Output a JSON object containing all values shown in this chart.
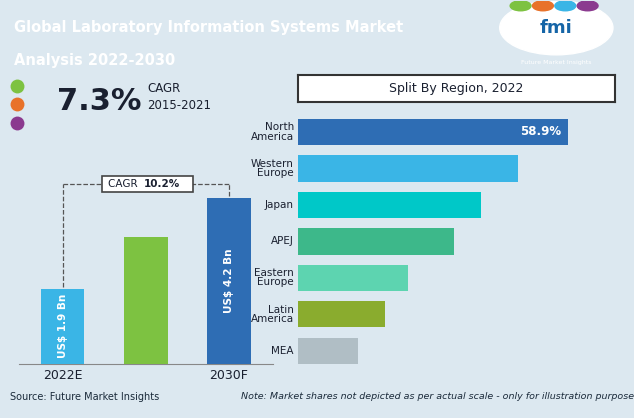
{
  "title_line1": "Global Laboratory Information Systems Market",
  "title_line2": "Analysis 2022-2030",
  "header_bg": "#1565a7",
  "header_text_color": "#ffffff",
  "bg_color": "#dce8f0",
  "footer_bg": "#c5d8e8",
  "cagr_value": "7.3%",
  "cagr_label": "CAGR\n2015-2021",
  "dot_colors": [
    "#7dc241",
    "#e8722a",
    "#8b3a8f"
  ],
  "bar_years": [
    "2022E",
    "2030F"
  ],
  "bar_values": [
    1.9,
    4.2
  ],
  "bar_labels": [
    "US$ 1.9 Bn",
    "US$ 4.2 Bn"
  ],
  "bar2022_color": "#3ab5e6",
  "bar2030_color": "#2e6db4",
  "middle_bar_color": "#7dc241",
  "cagr_box_text_normal": "CAGR ",
  "cagr_box_text_bold": "10.2%",
  "regions": [
    "North\nAmerica",
    "Western\nEurope",
    "Japan",
    "APEJ",
    "Eastern\nEurope",
    "Latin\nAmerica",
    "MEA"
  ],
  "region_values": [
    58.9,
    48,
    40,
    34,
    24,
    19,
    13
  ],
  "region_colors": [
    "#2e6db4",
    "#3ab5e6",
    "#00c8c8",
    "#3db88a",
    "#5dd4b0",
    "#8aac2e",
    "#b0bec5"
  ],
  "split_box_title": "Split By Region, 2022",
  "source_text": "Source: Future Market Insights",
  "note_text": "Note: Market shares not depicted as per actual scale - only for illustration purposes"
}
